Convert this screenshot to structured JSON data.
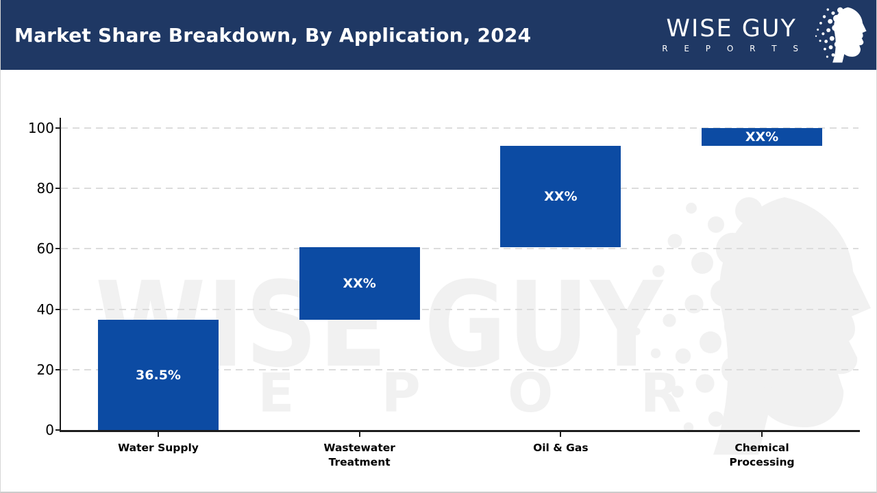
{
  "header": {
    "title": "Market Share Breakdown, By Application, 2024",
    "bg_color": "#1F3864",
    "logo": {
      "wordmark": "WISE GUY",
      "subtext": "R E P O R T S"
    }
  },
  "watermark": {
    "line1": "WISE GUY",
    "line2": "R E P O R T S"
  },
  "chart_data": {
    "type": "bar",
    "subtype": "waterfall-cumulative",
    "title": "Market Share Breakdown, By Application, 2024",
    "categories": [
      "Water Supply",
      "Wastewater Treatment",
      "Oil & Gas",
      "Chemical Processing"
    ],
    "category_lines": [
      [
        "Water Supply"
      ],
      [
        "Wastewater",
        "Treatment"
      ],
      [
        "Oil & Gas"
      ],
      [
        "Chemical",
        "Processing"
      ]
    ],
    "segments": [
      {
        "category": "Water Supply",
        "start": 0,
        "end": 36.5,
        "label": "36.5%"
      },
      {
        "category": "Wastewater Treatment",
        "start": 36.5,
        "end": 60.5,
        "label": "XX%"
      },
      {
        "category": "Oil & Gas",
        "start": 60.5,
        "end": 94,
        "label": "XX%"
      },
      {
        "category": "Chemical Processing",
        "start": 94,
        "end": 100,
        "label": "XX%"
      }
    ],
    "ylim": [
      0,
      105
    ],
    "yticks": [
      0,
      20,
      40,
      60,
      80,
      100
    ],
    "grid": "horizontal-dashed",
    "xlabel": "",
    "ylabel": "",
    "bar_color": "#0C4BA3",
    "bar_label_color": "#FFFFFF",
    "gridline_color": "#DCDCDC",
    "axis_color": "#1C1C1C",
    "legend": "none"
  }
}
